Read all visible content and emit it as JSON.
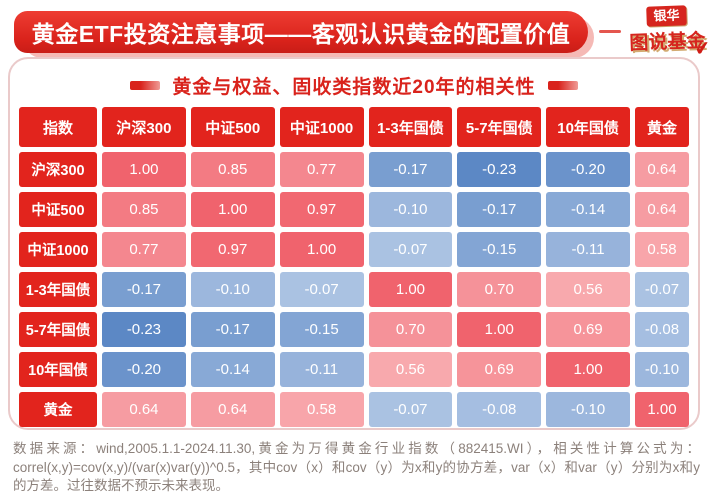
{
  "banner": {
    "title": "黄金ETF投资注意事项——客观认识黄金的配置价值"
  },
  "logo": {
    "badge": "银华",
    "name": "图说基金",
    "check": "✔"
  },
  "card": {
    "subtitle": "黄金与权益、固收类指数近20年的相关性"
  },
  "chart_data": {
    "type": "heatmap",
    "title": "黄金与权益、固收类指数近20年的相关性",
    "corner_label": "指数",
    "categories": [
      "沪深300",
      "中证500",
      "中证1000",
      "1-3年国债",
      "5-7年国债",
      "10年国债",
      "黄金"
    ],
    "matrix": [
      [
        1.0,
        0.85,
        0.77,
        -0.17,
        -0.23,
        -0.2,
        0.64
      ],
      [
        0.85,
        1.0,
        0.97,
        -0.1,
        -0.17,
        -0.14,
        0.64
      ],
      [
        0.77,
        0.97,
        1.0,
        -0.07,
        -0.15,
        -0.11,
        0.58
      ],
      [
        -0.17,
        -0.1,
        -0.07,
        1.0,
        0.7,
        0.56,
        -0.07
      ],
      [
        -0.23,
        -0.17,
        -0.15,
        0.7,
        1.0,
        0.69,
        -0.08
      ],
      [
        -0.2,
        -0.14,
        -0.11,
        0.56,
        0.69,
        1.0,
        -0.1
      ],
      [
        0.64,
        0.64,
        0.58,
        -0.07,
        -0.08,
        -0.1,
        1.0
      ]
    ],
    "value_range": [
      -1,
      1
    ],
    "value_format": "2dp",
    "legend": "none",
    "palette": {
      "header_bg": "#e2241d",
      "cell_text": "#ffffff",
      "positive_low": "#f9b2b6",
      "positive_high": "#f0636d",
      "negative_low": "#b4c9e6",
      "negative_high": "#5c88c5"
    }
  },
  "footer": {
    "source_note": "数据来源：wind,2005.1.1-2024.11.30,黄金为万得黄金行业指数（882415.WI），相关性计算公式为：correl(x,y)=cov(x,y)/(var(x)var(y))^0.5，其中cov（x）和cov（y）为x和y的协方差，var（x）和var（y）分别为x和y的方差。过往数据不预示未来表现。"
  },
  "colors": {
    "brand_red": "#d6251e",
    "banner_red": "#dc2019",
    "subtitle_red": "#d9231c",
    "card_border": "#eacaca",
    "footer_text": "#8c817b",
    "logo_gold_shadow": "#d3ab72"
  }
}
